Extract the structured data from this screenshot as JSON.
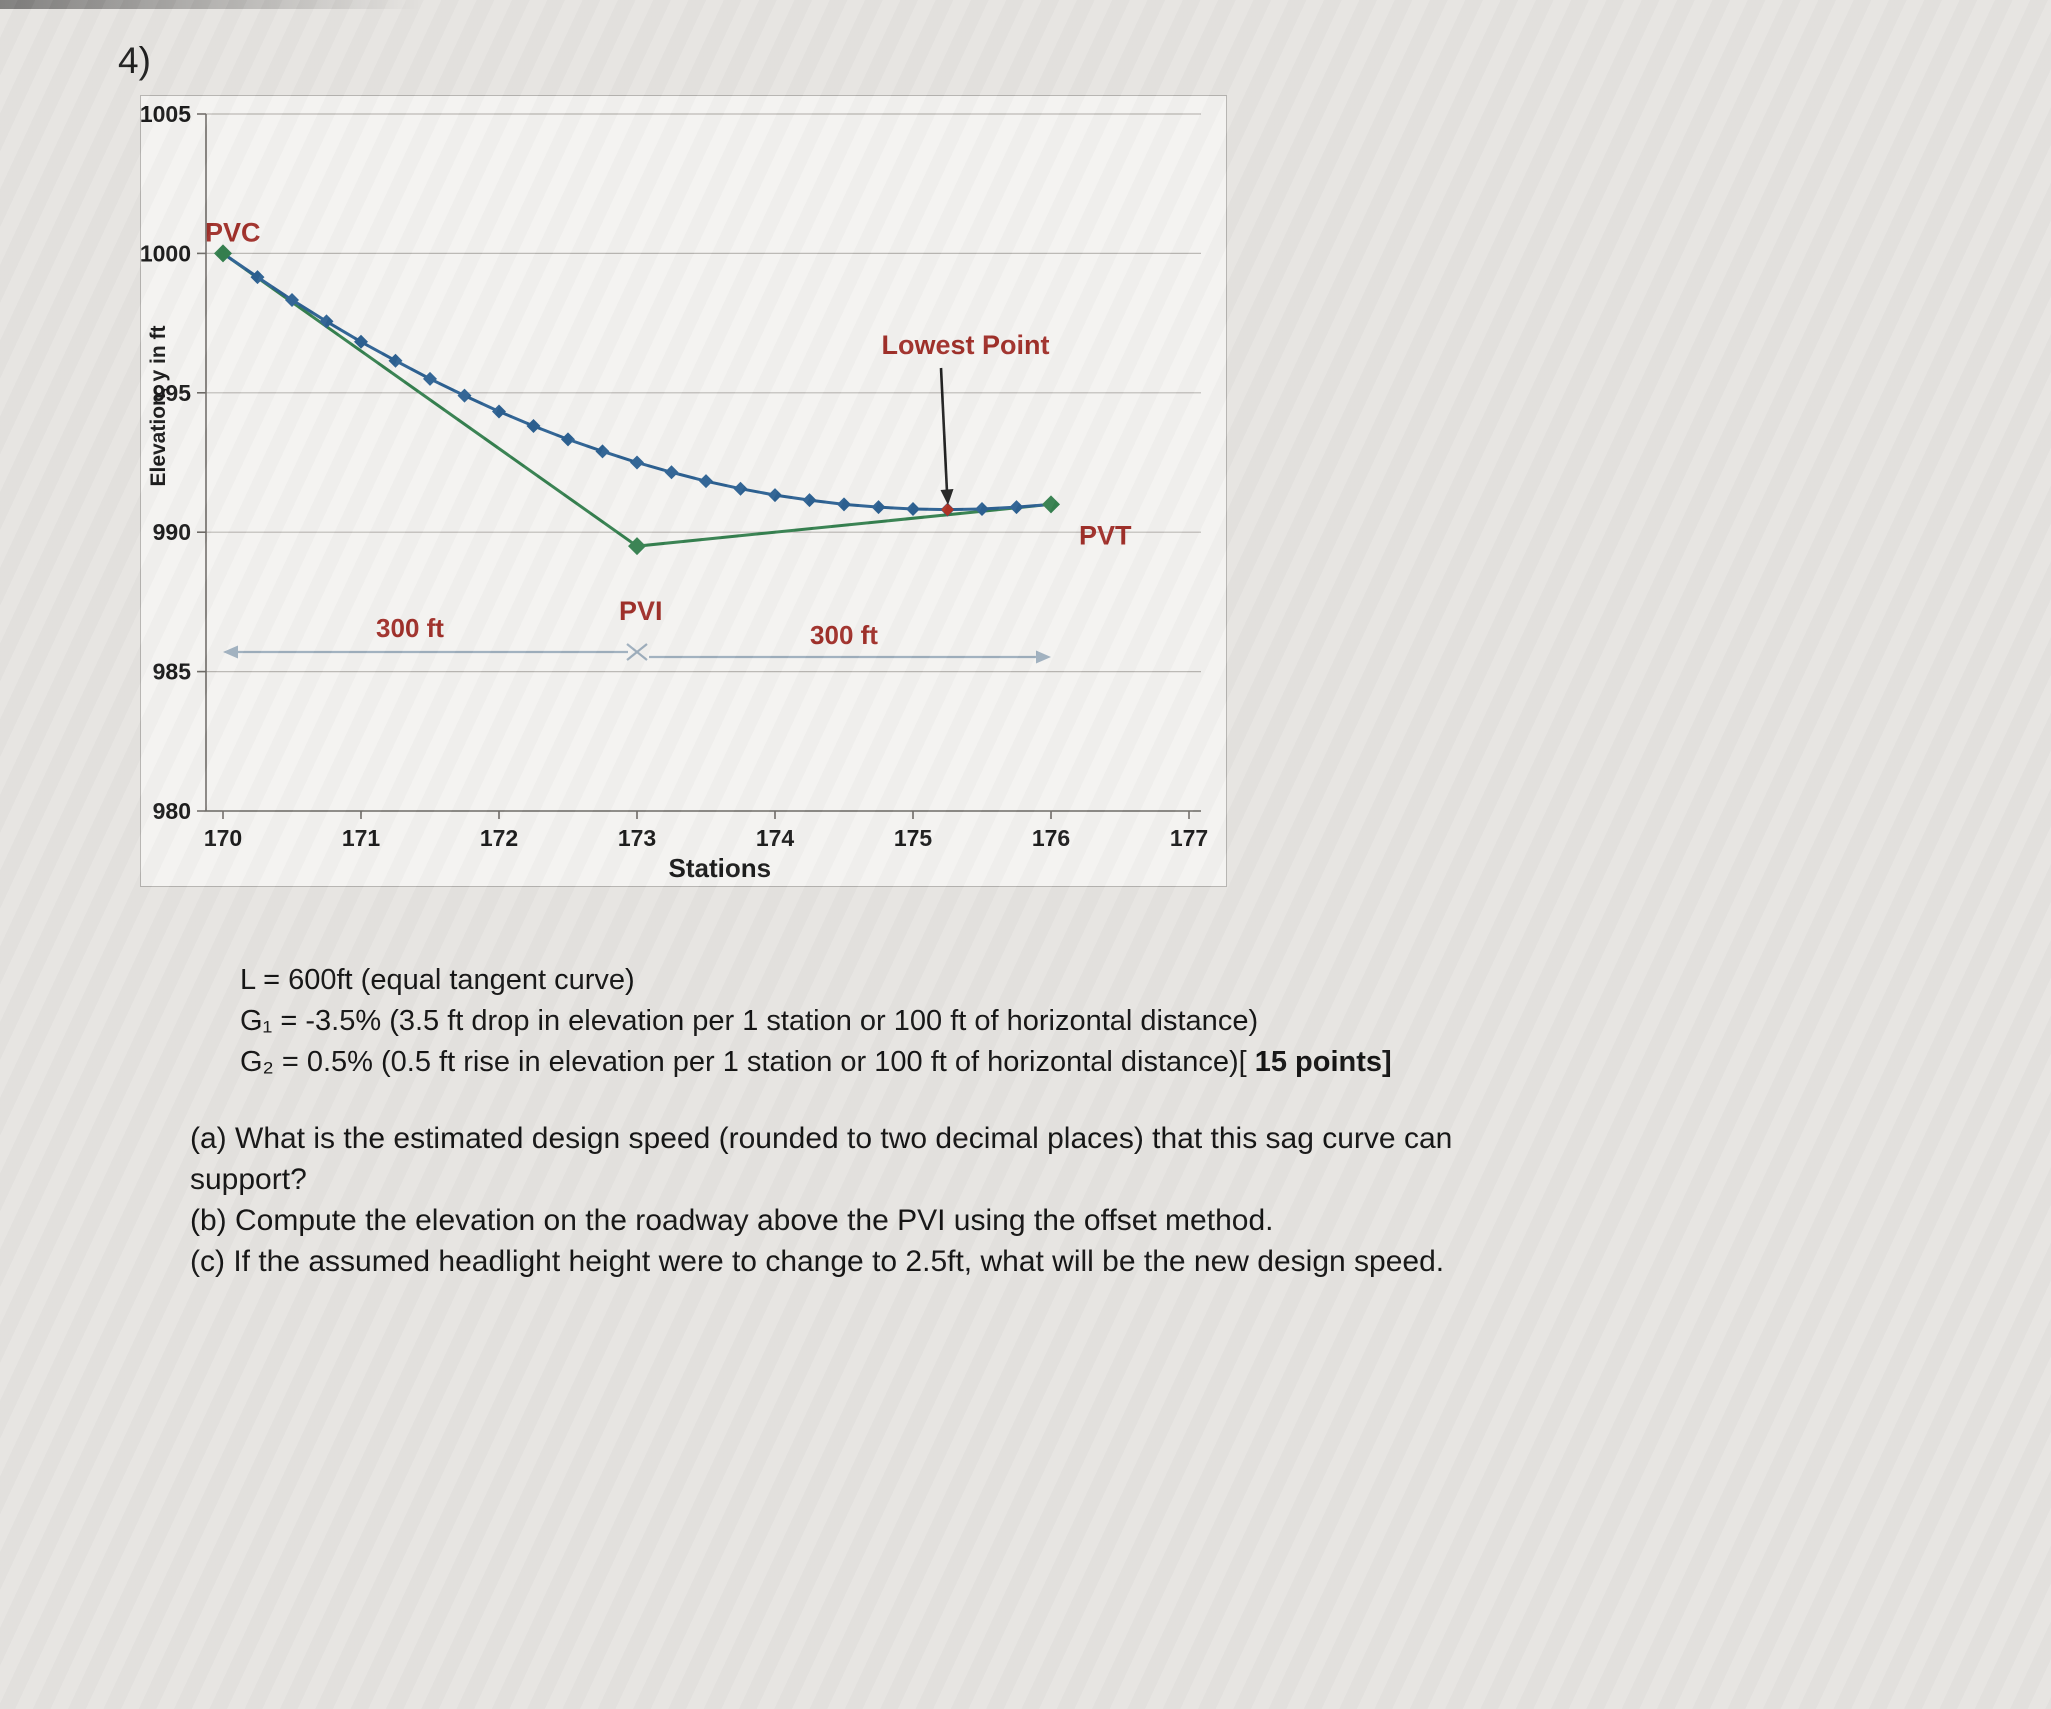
{
  "page": {
    "problem_number": "4)",
    "given_l": "L = 600ft (equal tangent curve)",
    "given_g1": "G₁ = -3.5% (3.5 ft drop in elevation per 1 station or 100 ft of horizontal distance)",
    "given_g2": "G₂ = 0.5% (0.5 ft rise in elevation per 1 station or 100 ft of horizontal distance)[ ",
    "given_points": "15 points]",
    "questions": [
      "(a) What is the estimated design speed (rounded to two decimal places) that this sag curve can",
      "support?",
      "(b) Compute the elevation on the roadway above the PVI using the offset method.",
      "(c) If the assumed headlight height were to change to 2.5ft, what will be the new design speed."
    ]
  },
  "chart_data": {
    "type": "line",
    "title": "",
    "xlabel": "Stations",
    "ylabel": "Elevation, y in ft",
    "xlim": [
      170,
      177
    ],
    "ylim": [
      980,
      1005
    ],
    "xticks": [
      170,
      171,
      172,
      173,
      174,
      175,
      176,
      177
    ],
    "yticks": [
      980,
      985,
      990,
      995,
      1000,
      1005
    ],
    "grid": "horizontal",
    "legend": "none",
    "colors": {
      "curve": "#2d6192",
      "tangent": "#35804f",
      "annotation": "#a0302a",
      "lowest_marker": "#b03427",
      "grid": "#bab7b3",
      "axis": "#6f6c68",
      "span_arrow": "#9fafbe",
      "text": "#1c1c1c",
      "pointer": "#222222"
    },
    "series": [
      {
        "name": "sag-curve",
        "style": "line-with-diamond-markers",
        "color": "#2d6192",
        "points": [
          [
            170.0,
            1000.0
          ],
          [
            170.25,
            999.15
          ],
          [
            170.5,
            998.33
          ],
          [
            170.75,
            997.56
          ],
          [
            171.0,
            996.83
          ],
          [
            171.25,
            996.15
          ],
          [
            171.5,
            995.5
          ],
          [
            171.75,
            994.9
          ],
          [
            172.0,
            994.33
          ],
          [
            172.25,
            993.81
          ],
          [
            172.5,
            993.33
          ],
          [
            172.75,
            992.9
          ],
          [
            173.0,
            992.5
          ],
          [
            173.25,
            992.15
          ],
          [
            173.5,
            991.83
          ],
          [
            173.75,
            991.56
          ],
          [
            174.0,
            991.33
          ],
          [
            174.25,
            991.15
          ],
          [
            174.5,
            991.0
          ],
          [
            174.75,
            990.9
          ],
          [
            175.0,
            990.83
          ],
          [
            175.25,
            990.81
          ],
          [
            175.5,
            990.83
          ],
          [
            175.75,
            990.9
          ],
          [
            176.0,
            991.0
          ]
        ]
      },
      {
        "name": "tangent-lines",
        "style": "line-with-diamond-vertices",
        "color": "#35804f",
        "points": [
          [
            170,
            1000
          ],
          [
            173,
            989.5
          ],
          [
            176,
            991
          ]
        ]
      }
    ],
    "key_points": {
      "pvc": {
        "label": "PVC",
        "station": 170,
        "elevation": 1000
      },
      "pvi": {
        "label": "PVI",
        "station": 173,
        "elevation": 989.5
      },
      "pvt": {
        "label": "PVT",
        "station": 176,
        "elevation": 991
      },
      "lowest": {
        "label": "Lowest Point",
        "station": 175.25,
        "elevation": 990.81
      }
    },
    "span_labels": {
      "left": "300 ft",
      "right": "300 ft"
    }
  }
}
